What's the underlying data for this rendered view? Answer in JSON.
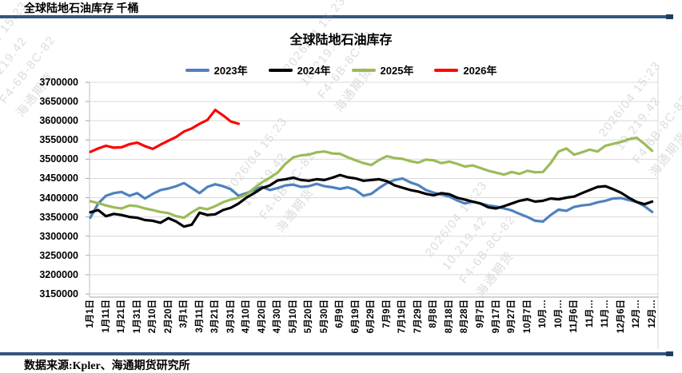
{
  "header": {
    "title": "全球陆地石油库存 千桶"
  },
  "footer": {
    "source": "数据来源:Kpler、海通期货研究所"
  },
  "rule_color": "#33567e",
  "watermark": {
    "color": "#969696",
    "lines": [
      "2026/04 15:23",
      "10.219.42",
      "F4-6B-8C-82",
      "海通期货"
    ]
  },
  "chart_data": {
    "type": "line",
    "title": "全球陆地石油库存",
    "unit": "千桶",
    "grid": "horizontal",
    "legend_position": "top",
    "ylim": [
      3150000,
      3700000
    ],
    "y_tick_step": 50000,
    "y_tick_labels": [
      "3700000",
      "3650000",
      "3600000",
      "3550000",
      "3500000",
      "3450000",
      "3400000",
      "3350000",
      "3300000",
      "3250000",
      "3200000",
      "3150000"
    ],
    "x_tick_labels": [
      "1月1日",
      "1月11日",
      "1月21日",
      "1月31日",
      "2月10日",
      "2月20日",
      "3月1日",
      "3月11日",
      "3月21日",
      "3月31日",
      "4月10日",
      "4月20日",
      "4月30日",
      "5月10日",
      "5月20日",
      "5月30日",
      "6月9日",
      "6月19日",
      "6月29日",
      "7月9日",
      "7月19日",
      "7月29日",
      "8月8日",
      "8月18日",
      "8月28日",
      "9月7日",
      "9月17日",
      "9月27日",
      "10月7日",
      "10月…",
      "10月…",
      "11月6日",
      "11月…",
      "11月…",
      "12月6日",
      "12月…",
      "12月…"
    ],
    "x_sample_interval_days": 5,
    "series": [
      {
        "name": "2023年",
        "color": "#4f81bd",
        "values": [
          3348000,
          3385000,
          3405000,
          3412000,
          3415000,
          3405000,
          3412000,
          3398000,
          3410000,
          3420000,
          3424000,
          3430000,
          3438000,
          3425000,
          3412000,
          3428000,
          3435000,
          3430000,
          3422000,
          3405000,
          3412000,
          3420000,
          3428000,
          3420000,
          3425000,
          3432000,
          3434000,
          3428000,
          3430000,
          3436000,
          3430000,
          3427000,
          3423000,
          3427000,
          3420000,
          3405000,
          3410000,
          3425000,
          3438000,
          3446000,
          3450000,
          3440000,
          3433000,
          3420000,
          3413000,
          3408000,
          3403000,
          3393000,
          3385000,
          3390000,
          3385000,
          3380000,
          3377000,
          3372000,
          3367000,
          3358000,
          3350000,
          3340000,
          3338000,
          3355000,
          3369000,
          3366000,
          3376000,
          3380000,
          3382000,
          3388000,
          3392000,
          3398000,
          3399000,
          3394000,
          3389000,
          3378000,
          3363000
        ]
      },
      {
        "name": "2024年",
        "color": "#000000",
        "values": [
          3362000,
          3368000,
          3352000,
          3358000,
          3355000,
          3350000,
          3348000,
          3342000,
          3340000,
          3335000,
          3347000,
          3338000,
          3325000,
          3330000,
          3361000,
          3355000,
          3357000,
          3368000,
          3374000,
          3385000,
          3400000,
          3412000,
          3425000,
          3432000,
          3445000,
          3448000,
          3452000,
          3446000,
          3444000,
          3448000,
          3446000,
          3452000,
          3459000,
          3453000,
          3450000,
          3444000,
          3446000,
          3448000,
          3443000,
          3432000,
          3426000,
          3420000,
          3416000,
          3410000,
          3406000,
          3412000,
          3409000,
          3400000,
          3395000,
          3390000,
          3385000,
          3375000,
          3372000,
          3378000,
          3385000,
          3392000,
          3396000,
          3390000,
          3392000,
          3398000,
          3396000,
          3400000,
          3403000,
          3412000,
          3420000,
          3428000,
          3430000,
          3422000,
          3413000,
          3400000,
          3389000,
          3383000,
          3390000
        ]
      },
      {
        "name": "2025年",
        "color": "#9bbb59",
        "values": [
          3391000,
          3386000,
          3380000,
          3375000,
          3372000,
          3380000,
          3378000,
          3372000,
          3368000,
          3363000,
          3360000,
          3352000,
          3348000,
          3362000,
          3374000,
          3370000,
          3378000,
          3388000,
          3395000,
          3400000,
          3408000,
          3425000,
          3440000,
          3452000,
          3465000,
          3488000,
          3505000,
          3510000,
          3512000,
          3518000,
          3520000,
          3515000,
          3514000,
          3505000,
          3497000,
          3490000,
          3485000,
          3498000,
          3508000,
          3503000,
          3501000,
          3495000,
          3491000,
          3499000,
          3497000,
          3490000,
          3494000,
          3488000,
          3481000,
          3484000,
          3477000,
          3470000,
          3465000,
          3460000,
          3467000,
          3462000,
          3470000,
          3466000,
          3467000,
          3490000,
          3520000,
          3528000,
          3512000,
          3518000,
          3525000,
          3520000,
          3535000,
          3540000,
          3545000,
          3552000,
          3556000,
          3540000,
          3522000
        ]
      },
      {
        "name": "2026年",
        "color": "#ff0000",
        "values": [
          3519000,
          3528000,
          3535000,
          3530000,
          3531000,
          3539000,
          3543000,
          3534000,
          3527000,
          3538000,
          3548000,
          3558000,
          3572000,
          3580000,
          3592000,
          3602000,
          3628000,
          3614000,
          3598000,
          3592000
        ]
      }
    ]
  }
}
